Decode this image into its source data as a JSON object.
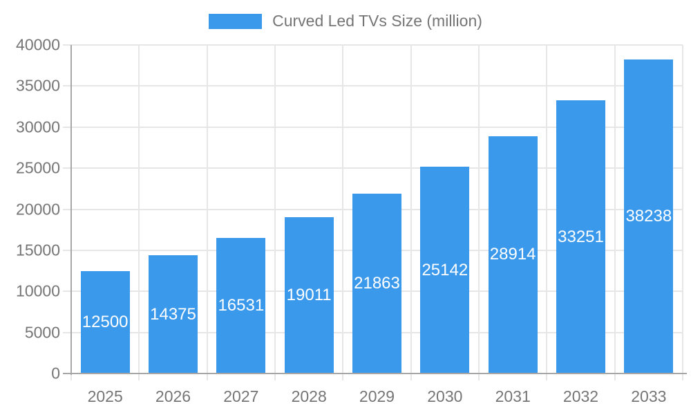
{
  "chart_data": {
    "type": "bar",
    "title": "Curved Led TVs Size (million)",
    "categories": [
      "2025",
      "2026",
      "2027",
      "2028",
      "2029",
      "2030",
      "2031",
      "2032",
      "2033"
    ],
    "values": [
      12500,
      14375,
      16531,
      19011,
      21863,
      25142,
      28914,
      33251,
      38238
    ],
    "xlabel": "",
    "ylabel": "",
    "ylim": [
      0,
      40000
    ],
    "yticks": [
      0,
      5000,
      10000,
      15000,
      20000,
      25000,
      30000,
      35000,
      40000
    ],
    "grid": true,
    "legend_position": "top",
    "value_label_position": "inside-center"
  },
  "colors": {
    "bar": "#3b99ec",
    "axis": "#a6a6a6",
    "grid": "#e6e6e6",
    "tick_text": "#757575",
    "value_text": "#ffffff",
    "background": "#ffffff"
  }
}
